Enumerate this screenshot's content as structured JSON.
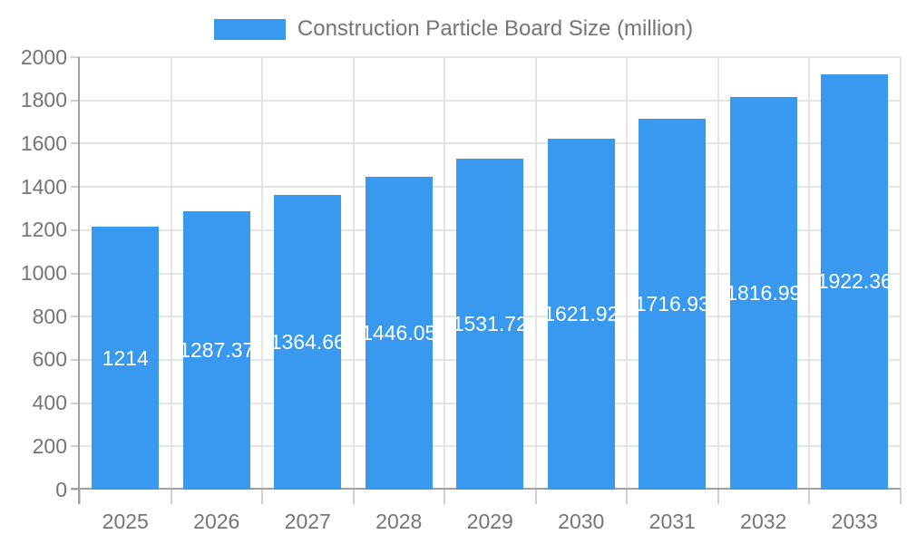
{
  "legend": {
    "label": "Construction Particle Board Size (million)"
  },
  "chart_data": {
    "type": "bar",
    "title": "Construction Particle Board Size (million)",
    "categories": [
      "2025",
      "2026",
      "2027",
      "2028",
      "2029",
      "2030",
      "2031",
      "2032",
      "2033"
    ],
    "values": [
      1214,
      1287.37,
      1364.66,
      1446.05,
      1531.72,
      1621.92,
      1716.93,
      1816.99,
      1922.36
    ],
    "bar_labels": [
      "1214",
      "1287.37",
      "1364.66",
      "1446.05",
      "1531.72",
      "1621.92",
      "1716.93",
      "1816.99",
      "1922.36"
    ],
    "xlabel": "",
    "ylabel": "",
    "ylim": [
      0,
      2000
    ],
    "ytick_step": 200,
    "ytick_labels": [
      "0",
      "200",
      "400",
      "600",
      "800",
      "1000",
      "1200",
      "1400",
      "1600",
      "1800",
      "2000"
    ],
    "grid": true,
    "legend_position": "top",
    "colors": {
      "bar": "#3899ee",
      "bar_label_text": "#ffffff",
      "axis_text": "#757575",
      "grid_line": "#e5e5e5",
      "tick_line": "#d0d0d0",
      "axis_line": "#a0a0a0",
      "background": "#ffffff"
    }
  }
}
